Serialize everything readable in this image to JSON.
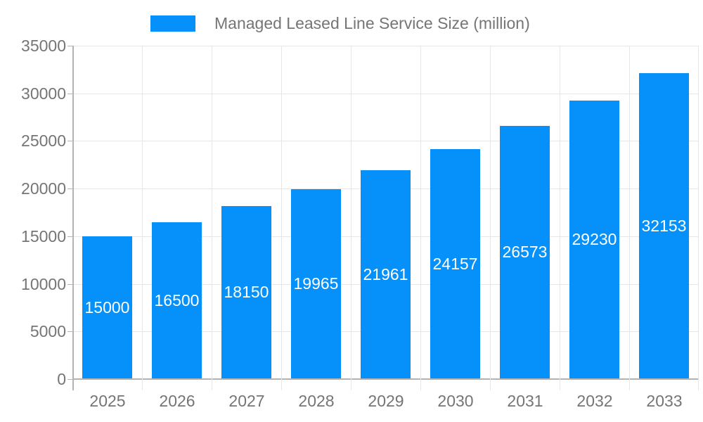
{
  "legend": {
    "label": "Managed Leased Line Service Size (million)"
  },
  "chart_data": {
    "type": "bar",
    "title": "Managed Leased Line Service Size (million)",
    "categories": [
      "2025",
      "2026",
      "2027",
      "2028",
      "2029",
      "2030",
      "2031",
      "2032",
      "2033"
    ],
    "values": [
      15000,
      16500,
      18150,
      19965,
      21961,
      24157,
      26573,
      29230,
      32153
    ],
    "xlabel": "",
    "ylabel": "",
    "ylim": [
      0,
      35000
    ],
    "yticks": [
      0,
      5000,
      10000,
      15000,
      20000,
      25000,
      30000,
      35000
    ],
    "grid": true,
    "legend_position": "top",
    "bar_color": "#0590FA",
    "value_label_color": "#ffffff",
    "axis_text_color": "#757575",
    "grid_color": "#e6e6e6",
    "axis_line_color": "#b3b3b3",
    "background_color": "#ffffff"
  }
}
